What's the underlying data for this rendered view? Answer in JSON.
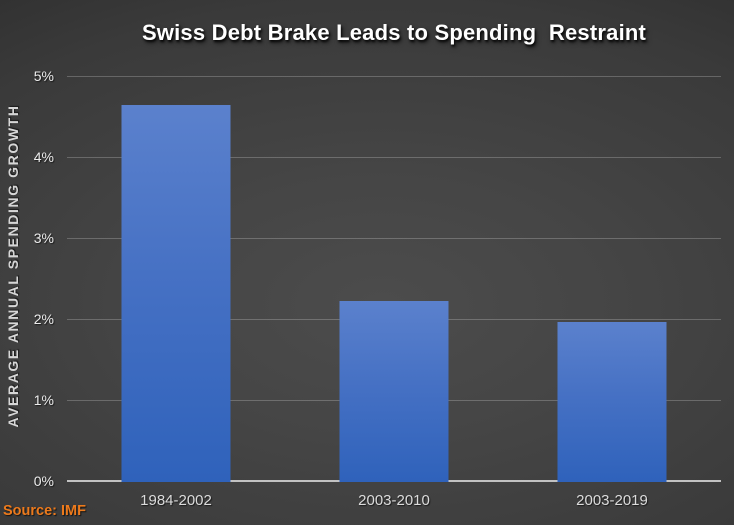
{
  "title": "Swiss Debt Brake Leads to Spending  Restraint",
  "source": "Source: IMF",
  "colors": {
    "background_center": "#4c4c4c",
    "background_edge": "#222222",
    "bar_top": "#5b81cd",
    "bar_bottom": "#2f62bb",
    "gridline": "rgba(255,255,255,0.22)",
    "axis_line": "#c2c2c2",
    "title_text": "#ffffff",
    "tick_text": "#ececec",
    "category_text": "#dcdcdc",
    "y_axis_title_text": "#d6d6d6",
    "source_text": "#ed7a1c"
  },
  "chart_data": {
    "type": "bar",
    "title": "Swiss Debt Brake Leads to Spending  Restraint",
    "categories": [
      "1984-2002",
      "2003-2010",
      "2003-2019"
    ],
    "values": [
      4.65,
      2.24,
      1.97
    ],
    "xlabel": "",
    "ylabel": "AVERAGE ANNUAL SPENDING GROWTH",
    "ylim": [
      0,
      5
    ],
    "yticks": [
      {
        "value": 0,
        "label": "0%"
      },
      {
        "value": 1,
        "label": "1%"
      },
      {
        "value": 2,
        "label": "2%"
      },
      {
        "value": 3,
        "label": "3%"
      },
      {
        "value": 4,
        "label": "4%"
      },
      {
        "value": 5,
        "label": "5%"
      }
    ],
    "grid": true,
    "legend": false,
    "source": "Source: IMF"
  }
}
